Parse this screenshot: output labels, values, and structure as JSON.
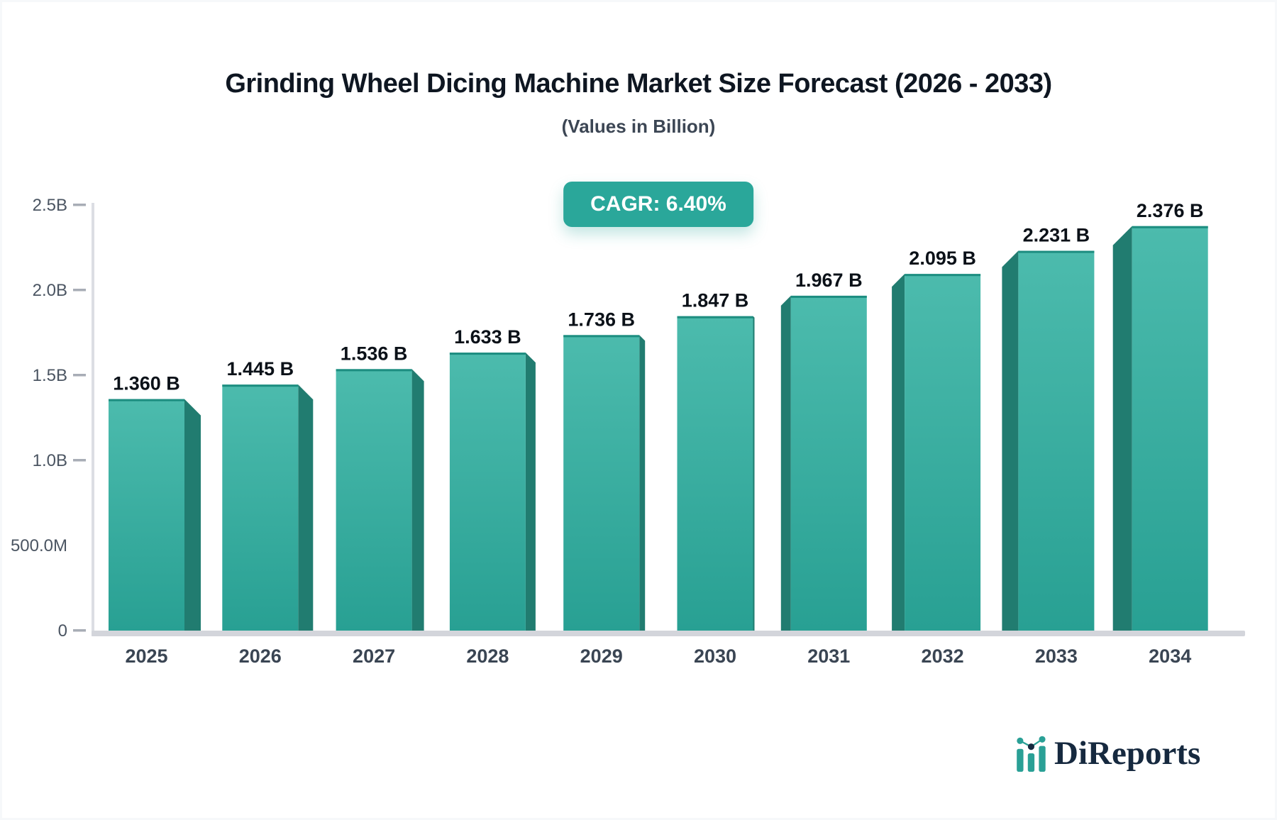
{
  "header": {
    "title": "Grinding Wheel Dicing Machine Market Size Forecast (2026 - 2033)",
    "subtitle": "(Values in Billion)",
    "cagr_label": "CAGR: 6.40%"
  },
  "chart_data": {
    "type": "bar",
    "title": "Grinding Wheel Dicing Machine Market Size Forecast (2026 - 2033)",
    "subtitle": "(Values in Billion)",
    "annotation": "CAGR: 6.40%",
    "categories": [
      "2025",
      "2026",
      "2027",
      "2028",
      "2029",
      "2030",
      "2031",
      "2032",
      "2033",
      "2034"
    ],
    "values": [
      1.36,
      1.445,
      1.536,
      1.633,
      1.736,
      1.847,
      1.967,
      2.095,
      2.231,
      2.376
    ],
    "value_labels": [
      "1.360 B",
      "1.445 B",
      "1.536 B",
      "1.633 B",
      "1.736 B",
      "1.847 B",
      "1.967 B",
      "2.095 B",
      "2.231 B",
      "2.376 B"
    ],
    "xlabel": "",
    "ylabel": "",
    "ylim": [
      0,
      2.5
    ],
    "y_ticks": [
      {
        "label": "2.5B",
        "value": 2.5,
        "dash": true
      },
      {
        "label": "2.0B",
        "value": 2.0,
        "dash": true
      },
      {
        "label": "1.5B",
        "value": 1.5,
        "dash": true
      },
      {
        "label": "1.0B",
        "value": 1.0,
        "dash": true
      },
      {
        "label": "500.0M",
        "value": 0.5,
        "dash": false
      },
      {
        "label": "0",
        "value": 0,
        "dash": true
      }
    ],
    "grid": false,
    "legend": "none",
    "bar_style": "pseudo-3d, side faces angled toward chart center",
    "colors": {
      "bar_face_top": "#4cbbad",
      "bar_face_bottom": "#28a093",
      "bar_side": "#217c70",
      "bar_top_edge": "#1d8d80",
      "axis_line": "#dcdee3",
      "baseline": "#d3d5db",
      "tick_dash": "#a8adb6",
      "y_label": "#4b5562",
      "x_label": "#3a4553",
      "value_label": "#0b1118",
      "badge_bg": "#2aa79a",
      "badge_text": "#ffffff"
    }
  },
  "branding": {
    "logo_text": "DiReports",
    "logo_icon": "mini-bar-line-chart-icon",
    "logo_text_color": "#16293f",
    "logo_accent_color": "#2aa096"
  }
}
